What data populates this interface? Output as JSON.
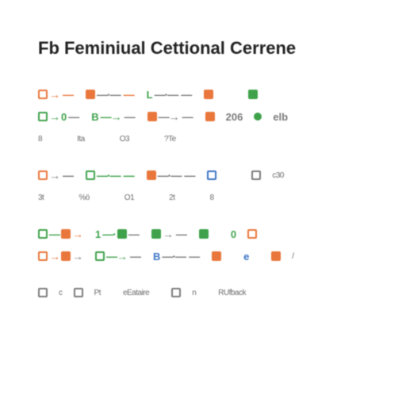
{
  "title": "Fb  Feminiual  Cettional  Cerrene",
  "colors": {
    "orange": "#e9763a",
    "green": "#3fa24b",
    "blue": "#3a74c4",
    "gray": "#7a7a7a",
    "sub": "#6b6b6b",
    "title": "#222222"
  },
  "rows": [
    {
      "type": "main",
      "cells": [
        {
          "k": "sq",
          "c": "orange",
          "outline": true
        },
        {
          "k": "arr",
          "c": "orange",
          "t": "→"
        },
        {
          "k": "arr",
          "c": "orange",
          "t": "—"
        },
        {
          "k": "gap",
          "w": "sm"
        },
        {
          "k": "sq",
          "c": "orange"
        },
        {
          "k": "arr",
          "c": "gray",
          "t": "—·—"
        },
        {
          "k": "arr",
          "c": "orange",
          "t": "—"
        },
        {
          "k": "gap",
          "w": "sm"
        },
        {
          "k": "txt",
          "c": "green",
          "t": "L"
        },
        {
          "k": "arr",
          "c": "gray",
          "t": "—·—"
        },
        {
          "k": "arr",
          "c": "gray",
          "t": "—"
        },
        {
          "k": "gap",
          "w": "sm"
        },
        {
          "k": "sq",
          "c": "orange"
        },
        {
          "k": "gap",
          "w": "lg"
        },
        {
          "k": "sq",
          "c": "green"
        }
      ]
    },
    {
      "type": "main",
      "cells": [
        {
          "k": "sq",
          "c": "green",
          "outline": true
        },
        {
          "k": "arr",
          "c": "green",
          "t": "→"
        },
        {
          "k": "txt",
          "c": "green",
          "t": "0"
        },
        {
          "k": "arr",
          "c": "gray",
          "t": "—"
        },
        {
          "k": "gap",
          "w": "sm"
        },
        {
          "k": "txt",
          "c": "green",
          "t": "B"
        },
        {
          "k": "arr",
          "c": "green",
          "t": "—→"
        },
        {
          "k": "arr",
          "c": "gray",
          "t": "—"
        },
        {
          "k": "gap",
          "w": "sm"
        },
        {
          "k": "sq",
          "c": "orange"
        },
        {
          "k": "arr",
          "c": "gray",
          "t": "—→"
        },
        {
          "k": "arr",
          "c": "gray",
          "t": "—"
        },
        {
          "k": "gap",
          "w": "sm"
        },
        {
          "k": "sq",
          "c": "orange"
        },
        {
          "k": "gap",
          "w": "sm"
        },
        {
          "k": "txt",
          "c": "gray",
          "t": "206"
        },
        {
          "k": "gap",
          "w": "sm"
        },
        {
          "k": "dot",
          "c": "green"
        },
        {
          "k": "gap",
          "w": "sm"
        },
        {
          "k": "txt",
          "c": "gray",
          "t": "elb"
        }
      ]
    },
    {
      "type": "sub",
      "cells": [
        {
          "k": "sub",
          "t": "8"
        },
        {
          "k": "gap",
          "w": "lg"
        },
        {
          "k": "sub",
          "t": "Ita"
        },
        {
          "k": "gap",
          "w": "lg"
        },
        {
          "k": "sub",
          "t": "O3"
        },
        {
          "k": "gap",
          "w": "lg"
        },
        {
          "k": "sub",
          "t": "?Te"
        }
      ]
    },
    {
      "type": "spacer"
    },
    {
      "type": "main",
      "cells": [
        {
          "k": "sq",
          "c": "orange",
          "outline": true
        },
        {
          "k": "arr",
          "c": "gray",
          "t": "→"
        },
        {
          "k": "arr",
          "c": "gray",
          "t": "—"
        },
        {
          "k": "gap",
          "w": "sm"
        },
        {
          "k": "sq",
          "c": "green",
          "outline": true
        },
        {
          "k": "arr",
          "c": "green",
          "t": "—·—"
        },
        {
          "k": "arr",
          "c": "green",
          "t": "—"
        },
        {
          "k": "gap",
          "w": "sm"
        },
        {
          "k": "sq",
          "c": "orange"
        },
        {
          "k": "arr",
          "c": "gray",
          "t": "—·—"
        },
        {
          "k": "arr",
          "c": "gray",
          "t": "—"
        },
        {
          "k": "gap",
          "w": "sm"
        },
        {
          "k": "sq",
          "c": "blue",
          "outline": true
        },
        {
          "k": "gap",
          "w": "lg"
        },
        {
          "k": "sq",
          "c": "gray",
          "outline": true
        },
        {
          "k": "gap",
          "w": "sm"
        },
        {
          "k": "sub",
          "t": "c30"
        }
      ]
    },
    {
      "type": "sub",
      "cells": [
        {
          "k": "sub",
          "t": "3t"
        },
        {
          "k": "gap",
          "w": "lg"
        },
        {
          "k": "sub",
          "t": "%ö"
        },
        {
          "k": "gap",
          "w": "lg"
        },
        {
          "k": "sub",
          "t": "O1"
        },
        {
          "k": "gap",
          "w": "lg"
        },
        {
          "k": "sub",
          "t": "2t"
        },
        {
          "k": "gap",
          "w": "lg"
        },
        {
          "k": "sub",
          "t": "8"
        }
      ]
    },
    {
      "type": "spacer"
    },
    {
      "type": "main",
      "cells": [
        {
          "k": "sq",
          "c": "green",
          "outline": true
        },
        {
          "k": "arr",
          "c": "green",
          "t": "—"
        },
        {
          "k": "sq",
          "c": "orange"
        },
        {
          "k": "arr",
          "c": "orange",
          "t": "→"
        },
        {
          "k": "gap",
          "w": "sm"
        },
        {
          "k": "txt",
          "c": "green",
          "t": "1"
        },
        {
          "k": "arr",
          "c": "green",
          "t": "—·"
        },
        {
          "k": "sq",
          "c": "green"
        },
        {
          "k": "arr",
          "c": "gray",
          "t": "—"
        },
        {
          "k": "gap",
          "w": "sm"
        },
        {
          "k": "sq",
          "c": "green"
        },
        {
          "k": "arr",
          "c": "gray",
          "t": "→"
        },
        {
          "k": "arr",
          "c": "gray",
          "t": "—"
        },
        {
          "k": "gap",
          "w": "sm"
        },
        {
          "k": "sq",
          "c": "green"
        },
        {
          "k": "gap",
          "w": "md"
        },
        {
          "k": "txt",
          "c": "green",
          "t": "0"
        },
        {
          "k": "gap",
          "w": "sm"
        },
        {
          "k": "sq",
          "c": "orange",
          "outline": true
        }
      ]
    },
    {
      "type": "main",
      "cells": [
        {
          "k": "sq",
          "c": "orange",
          "outline": true
        },
        {
          "k": "arr",
          "c": "orange",
          "t": "→"
        },
        {
          "k": "sq",
          "c": "orange"
        },
        {
          "k": "arr",
          "c": "gray",
          "t": "→"
        },
        {
          "k": "gap",
          "w": "sm"
        },
        {
          "k": "sq",
          "c": "green",
          "outline": true
        },
        {
          "k": "arr",
          "c": "green",
          "t": "—→"
        },
        {
          "k": "arr",
          "c": "gray",
          "t": "—"
        },
        {
          "k": "gap",
          "w": "sm"
        },
        {
          "k": "txt",
          "c": "blue",
          "t": "B"
        },
        {
          "k": "arr",
          "c": "gray",
          "t": "—·—"
        },
        {
          "k": "arr",
          "c": "gray",
          "t": "—"
        },
        {
          "k": "gap",
          "w": "sm"
        },
        {
          "k": "sq",
          "c": "orange"
        },
        {
          "k": "gap",
          "w": "md"
        },
        {
          "k": "txt",
          "c": "blue",
          "t": "e"
        },
        {
          "k": "gap",
          "w": "md"
        },
        {
          "k": "sq",
          "c": "orange"
        },
        {
          "k": "gap",
          "w": "sm"
        },
        {
          "k": "sub",
          "t": "/"
        }
      ]
    },
    {
      "type": "spacer"
    },
    {
      "type": "sub",
      "cells": [
        {
          "k": "sq",
          "c": "gray",
          "outline": true
        },
        {
          "k": "gap",
          "w": "sm"
        },
        {
          "k": "sub",
          "t": "c"
        },
        {
          "k": "gap",
          "w": "sm"
        },
        {
          "k": "sq",
          "c": "gray",
          "outline": true
        },
        {
          "k": "gap",
          "w": "sm"
        },
        {
          "k": "sub",
          "t": "Pt"
        },
        {
          "k": "gap",
          "w": "md"
        },
        {
          "k": "sub",
          "t": "eEataire"
        },
        {
          "k": "gap",
          "w": "md"
        },
        {
          "k": "sq",
          "c": "gray",
          "outline": true
        },
        {
          "k": "gap",
          "w": "sm"
        },
        {
          "k": "sub",
          "t": "n"
        },
        {
          "k": "gap",
          "w": "md"
        },
        {
          "k": "sub",
          "t": "RUfback"
        }
      ]
    }
  ]
}
